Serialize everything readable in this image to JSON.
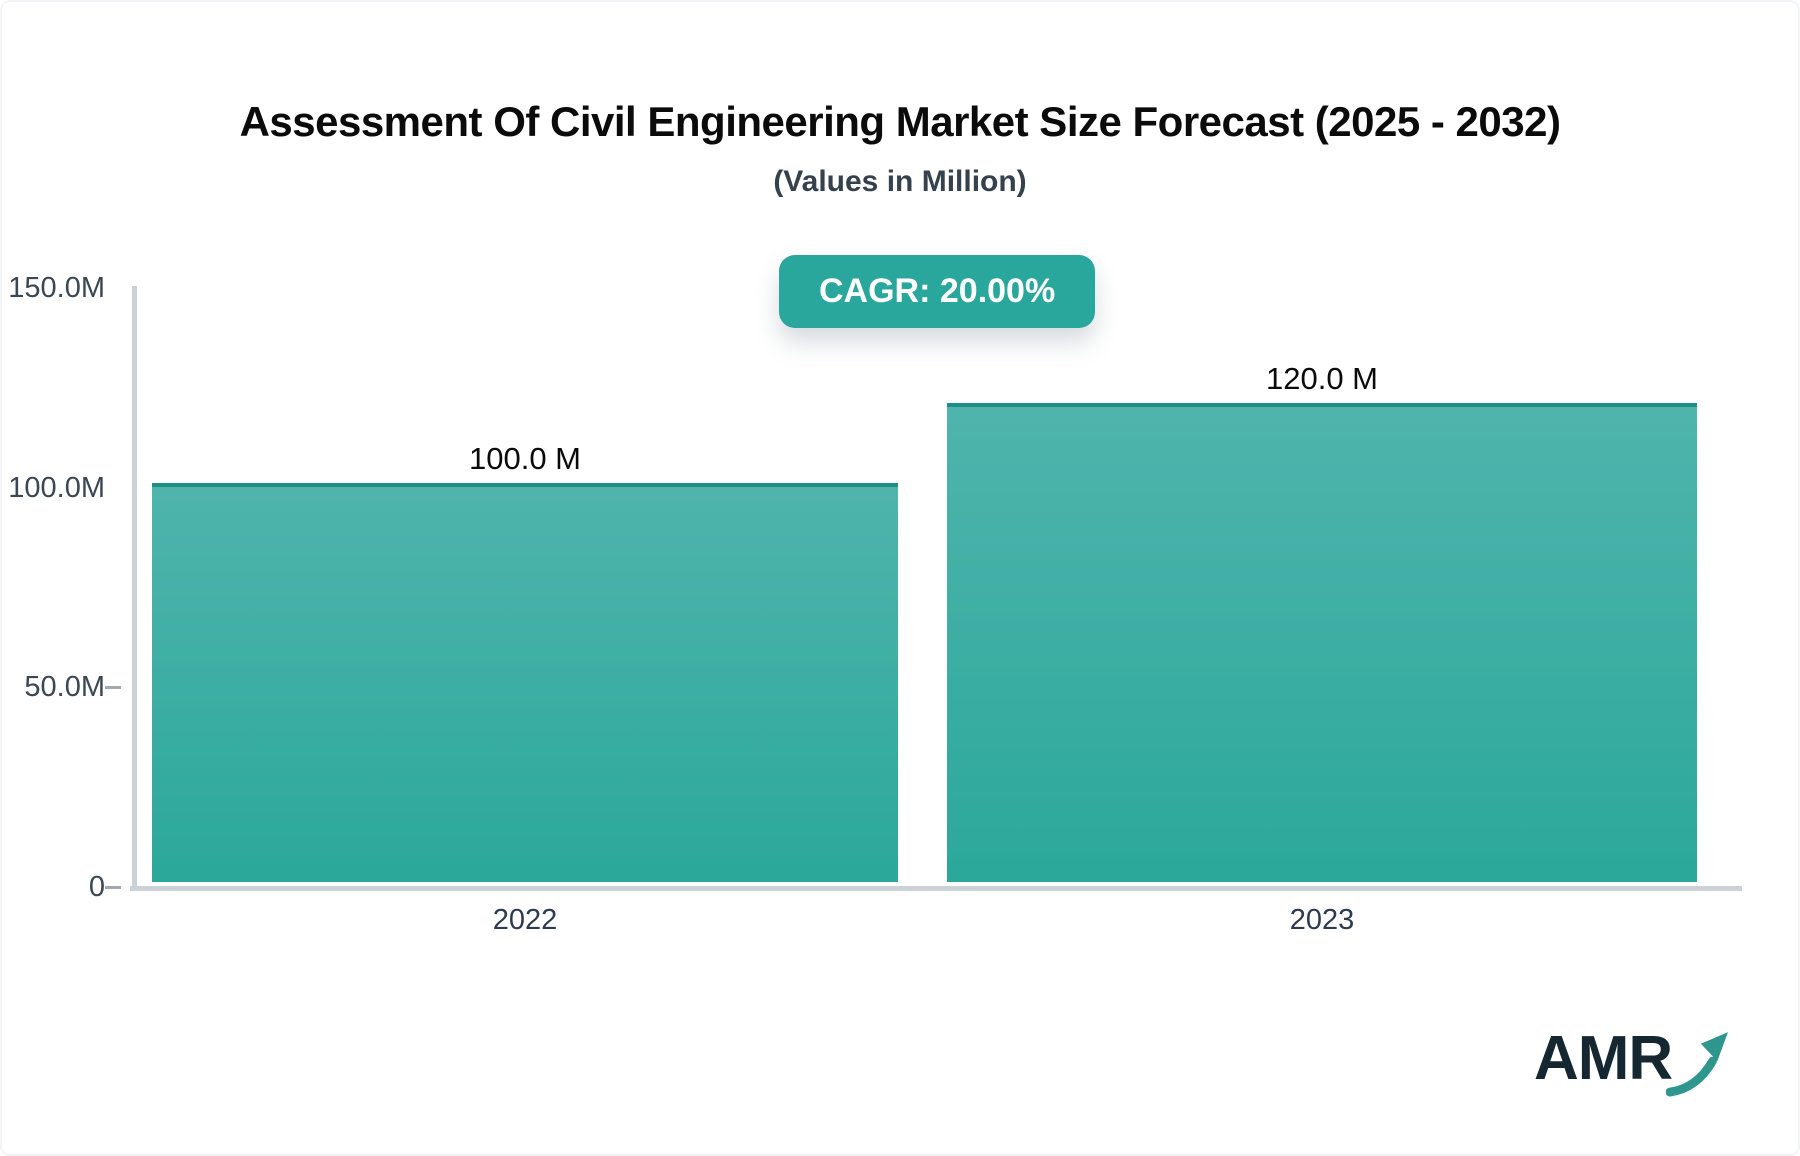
{
  "header": {
    "title": "Assessment Of Civil Engineering Market Size Forecast (2025 - 2032)",
    "subtitle": "(Values in Million)",
    "cagr_badge": "CAGR: 20.00%",
    "badge_color": "#2aa79d"
  },
  "chart_data": {
    "type": "bar",
    "categories": [
      "2022",
      "2023"
    ],
    "values": [
      100.0,
      120.0
    ],
    "bar_labels": [
      "100.0 M",
      "120.0 M"
    ],
    "unit": "Million",
    "ylim": [
      0,
      150
    ],
    "yticks": [
      150,
      100,
      50,
      0
    ],
    "ytick_labels": [
      "150.0M",
      "100.0M",
      "50.0M",
      "0"
    ],
    "grid": false,
    "legend": false,
    "bar_color_top": "#4fb4ac",
    "bar_color_bottom": "#2ba89a",
    "bar_border_color": "#1f8e85",
    "axis_color": "#ccd1d8"
  },
  "logo": {
    "text": "AMR",
    "arrow_icon": "trend-up-arrow-icon",
    "text_color": "#152730",
    "accent_color": "#2f968d"
  }
}
